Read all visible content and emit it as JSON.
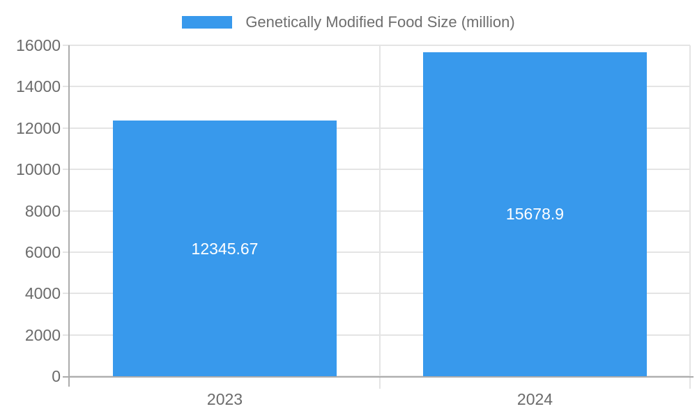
{
  "legend": {
    "label": "Genetically Modified Food Size (million)"
  },
  "chart_data": {
    "type": "bar",
    "title": "",
    "legend": "Genetically Modified Food Size (million)",
    "legend_position": "top-center",
    "categories": [
      "2023",
      "2024"
    ],
    "series": [
      {
        "name": "Genetically Modified Food Size (million)",
        "values": [
          12345.67,
          15678.9
        ]
      }
    ],
    "data_labels": [
      "12345.67",
      "15678.9"
    ],
    "xlabel": "",
    "ylabel": "",
    "ylim": [
      0,
      16000
    ],
    "ytick_step": 2000,
    "ytick_labels": [
      "0",
      "2000",
      "4000",
      "6000",
      "8000",
      "10000",
      "12000",
      "14000",
      "16000"
    ],
    "grid": true,
    "colors": {
      "bar": "#3899EC",
      "grid": "#E4E4E4",
      "axis": "#ACACAC",
      "tick_label": "#6B6B6B",
      "legend_label": "#6E6E6E",
      "data_label": "#FFFFFF",
      "background": "#FFFFFF"
    }
  }
}
